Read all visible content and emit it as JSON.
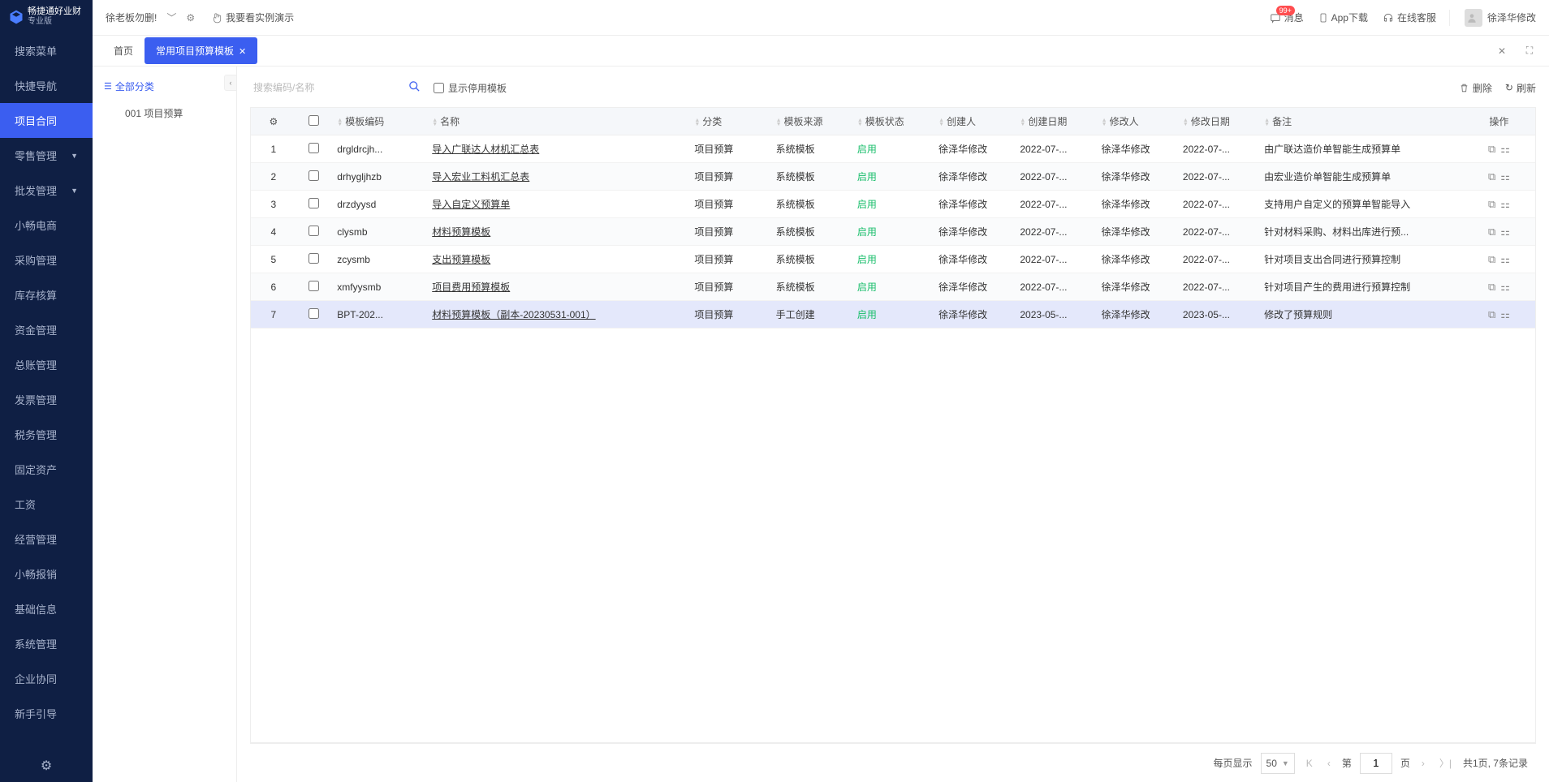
{
  "brand": {
    "name": "畅捷通好业财",
    "edition": "专业版"
  },
  "sidebar": {
    "items": [
      {
        "label": "搜索菜单",
        "caret": false
      },
      {
        "label": "快捷导航",
        "caret": false
      },
      {
        "label": "项目合同",
        "caret": false,
        "active": true
      },
      {
        "label": "零售管理",
        "caret": true
      },
      {
        "label": "批发管理",
        "caret": true
      },
      {
        "label": "小畅电商",
        "caret": false
      },
      {
        "label": "采购管理",
        "caret": false
      },
      {
        "label": "库存核算",
        "caret": false
      },
      {
        "label": "资金管理",
        "caret": false
      },
      {
        "label": "总账管理",
        "caret": false
      },
      {
        "label": "发票管理",
        "caret": false
      },
      {
        "label": "税务管理",
        "caret": false
      },
      {
        "label": "固定资产",
        "caret": false
      },
      {
        "label": "工资",
        "caret": false
      },
      {
        "label": "经营管理",
        "caret": false
      },
      {
        "label": "小畅报销",
        "caret": false
      },
      {
        "label": "基础信息",
        "caret": false
      },
      {
        "label": "系统管理",
        "caret": false
      },
      {
        "label": "企业协同",
        "caret": false
      },
      {
        "label": "新手引导",
        "caret": false
      }
    ]
  },
  "topbar": {
    "greeting": "徐老板勿删!",
    "demo": "我要看实例演示",
    "message": "消息",
    "badge": "99+",
    "app": "App下载",
    "service": "在线客服",
    "user": "徐泽华修改"
  },
  "tabs": {
    "items": [
      {
        "label": "首页",
        "closable": false,
        "active": false
      },
      {
        "label": "常用项目预算模板",
        "closable": true,
        "active": true
      }
    ]
  },
  "category": {
    "root": "全部分类",
    "children": [
      "001 项目预算"
    ]
  },
  "toolbar": {
    "search_placeholder": "搜索编码/名称",
    "show_disabled": "显示停用模板",
    "delete": "删除",
    "refresh": "刷新"
  },
  "table": {
    "columns": {
      "code": "模板编码",
      "name": "名称",
      "category": "分类",
      "source": "模板来源",
      "status": "模板状态",
      "creator": "创建人",
      "cdate": "创建日期",
      "modifier": "修改人",
      "mdate": "修改日期",
      "remark": "备注",
      "op": "操作"
    },
    "rows": [
      {
        "idx": "1",
        "code": "drgldrcjh...",
        "name": "导入广联达人材机汇总表",
        "category": "项目预算",
        "source": "系统模板",
        "status": "启用",
        "creator": "徐泽华修改",
        "cdate": "2022-07-...",
        "modifier": "徐泽华修改",
        "mdate": "2022-07-...",
        "remark": "由广联达造价单智能生成预算单"
      },
      {
        "idx": "2",
        "code": "drhygljhzb",
        "name": "导入宏业工料机汇总表",
        "category": "项目预算",
        "source": "系统模板",
        "status": "启用",
        "creator": "徐泽华修改",
        "cdate": "2022-07-...",
        "modifier": "徐泽华修改",
        "mdate": "2022-07-...",
        "remark": "由宏业造价单智能生成预算单"
      },
      {
        "idx": "3",
        "code": "drzdyysd",
        "name": "导入自定义预算单",
        "category": "项目预算",
        "source": "系统模板",
        "status": "启用",
        "creator": "徐泽华修改",
        "cdate": "2022-07-...",
        "modifier": "徐泽华修改",
        "mdate": "2022-07-...",
        "remark": "支持用户自定义的预算单智能导入"
      },
      {
        "idx": "4",
        "code": "clysmb",
        "name": "材料预算模板",
        "category": "项目预算",
        "source": "系统模板",
        "status": "启用",
        "creator": "徐泽华修改",
        "cdate": "2022-07-...",
        "modifier": "徐泽华修改",
        "mdate": "2022-07-...",
        "remark": "针对材料采购、材料出库进行预..."
      },
      {
        "idx": "5",
        "code": "zcysmb",
        "name": "支出预算模板",
        "category": "项目预算",
        "source": "系统模板",
        "status": "启用",
        "creator": "徐泽华修改",
        "cdate": "2022-07-...",
        "modifier": "徐泽华修改",
        "mdate": "2022-07-...",
        "remark": "针对项目支出合同进行预算控制"
      },
      {
        "idx": "6",
        "code": "xmfyysmb",
        "name": "项目费用预算模板",
        "category": "项目预算",
        "source": "系统模板",
        "status": "启用",
        "creator": "徐泽华修改",
        "cdate": "2022-07-...",
        "modifier": "徐泽华修改",
        "mdate": "2022-07-...",
        "remark": "针对项目产生的费用进行预算控制"
      },
      {
        "idx": "7",
        "code": "BPT-202...",
        "name": "材料预算模板（副本-20230531-001）",
        "category": "项目预算",
        "source": "手工创建",
        "status": "启用",
        "creator": "徐泽华修改",
        "cdate": "2023-05-...",
        "modifier": "徐泽华修改",
        "mdate": "2023-05-...",
        "remark": "修改了预算规则",
        "selected": true
      }
    ]
  },
  "pagination": {
    "per_page_label": "每页显示",
    "per_page": "50",
    "page_prefix": "第",
    "page": "1",
    "page_suffix": "页",
    "summary": "共1页, 7条记录"
  },
  "colors": {
    "sidebar_bg": "#0f1f44",
    "primary": "#3b5ef0",
    "success": "#19be6b",
    "badge": "#ff4d4f"
  }
}
